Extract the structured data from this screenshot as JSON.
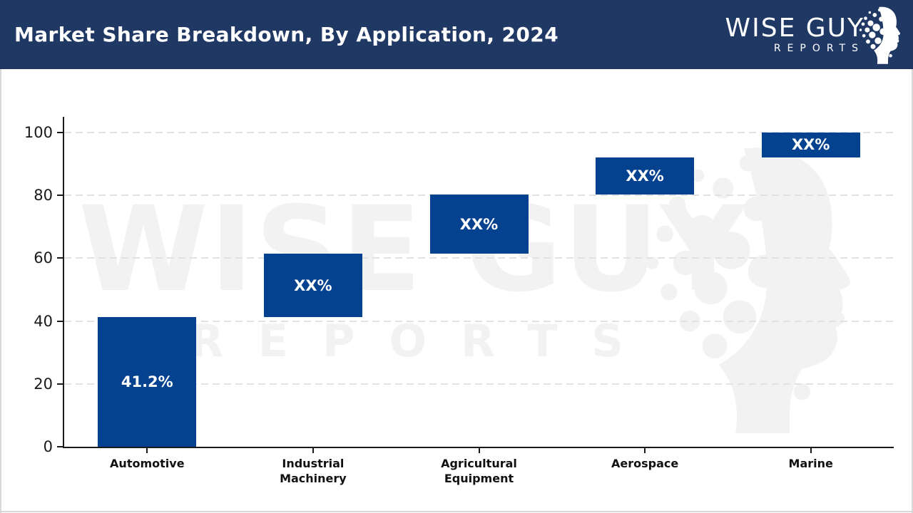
{
  "header": {
    "title": "Market Share Breakdown, By Application, 2024",
    "logo": {
      "brand": "WISE GUY",
      "sub": "REPORTS"
    }
  },
  "watermark": {
    "brand": "WISE GUY",
    "sub": "REPORTS"
  },
  "colors": {
    "header_bg": "#1F3864",
    "bar_blue": "#04428F",
    "gridline": "#E2E2E2",
    "axis": "#1A1A1A",
    "watermark": "#F2F2F2",
    "bar_label": "#FFFFFF",
    "page_border": "#D8D8D8"
  },
  "chart_data": {
    "type": "bar",
    "variant": "waterfall",
    "title": "Market Share Breakdown, By Application, 2024",
    "unit": "%",
    "categories": [
      "Automotive",
      "Industrial Machinery",
      "Agricultural Equipment",
      "Aerospace",
      "Marine"
    ],
    "category_label_lines": [
      [
        "Automotive"
      ],
      [
        "Industrial",
        "Machinery"
      ],
      [
        "Agricultural",
        "Equipment"
      ],
      [
        "Aerospace"
      ],
      [
        "Marine"
      ]
    ],
    "segments": [
      {
        "category": "Automotive",
        "start": 0,
        "end": 41.2,
        "value": 41.2,
        "label": "41.2%"
      },
      {
        "category": "Industrial Machinery",
        "start": 41.2,
        "end": 61.5,
        "value": 20.3,
        "label": "XX%"
      },
      {
        "category": "Agricultural Equipment",
        "start": 61.5,
        "end": 80.2,
        "value": 18.7,
        "label": "XX%"
      },
      {
        "category": "Aerospace",
        "start": 80.2,
        "end": 92.1,
        "value": 11.9,
        "label": "XX%"
      },
      {
        "category": "Marine",
        "start": 92.1,
        "end": 100,
        "value": 7.9,
        "label": "XX%"
      }
    ],
    "xlabel": "",
    "ylabel": "",
    "ylim": [
      0,
      105
    ],
    "yticks": [
      0,
      20,
      40,
      60,
      80,
      100
    ],
    "grid": "horizontal-dashed",
    "legend": false,
    "bar_color": "#04428F"
  }
}
